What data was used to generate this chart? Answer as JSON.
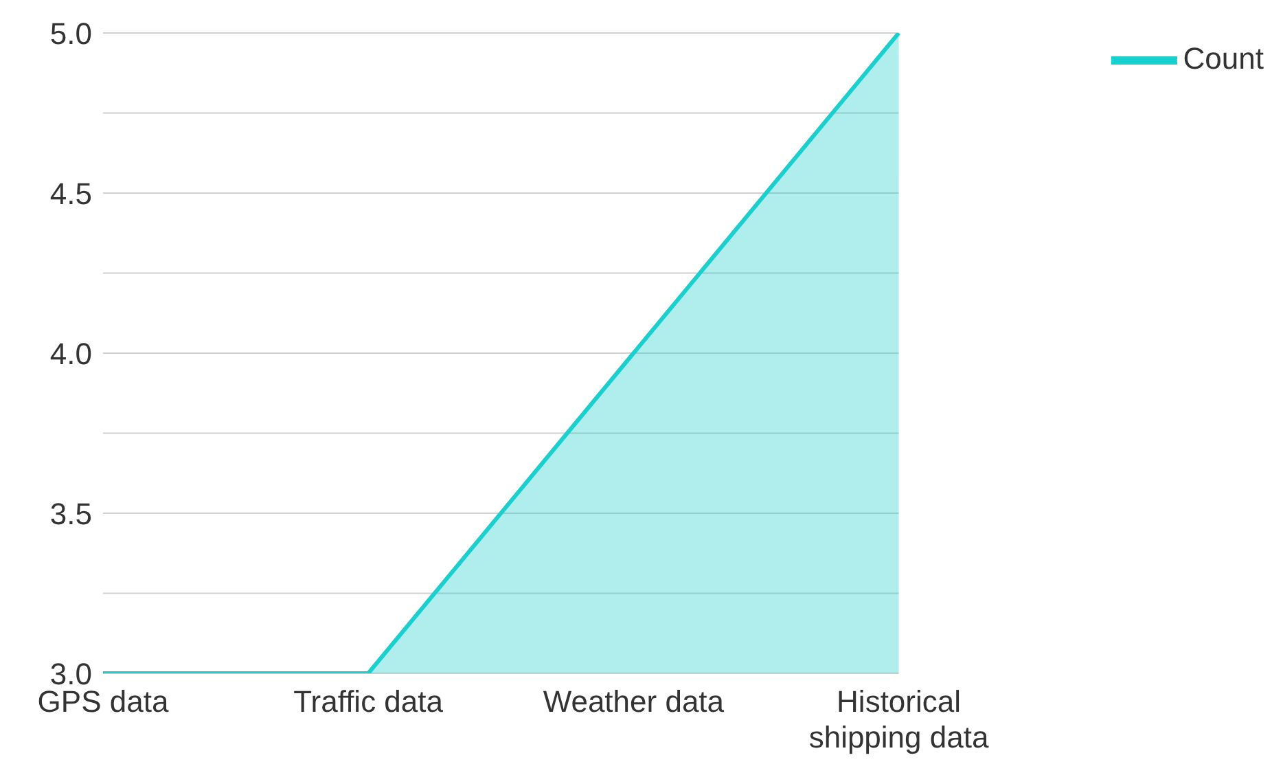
{
  "chart_data": {
    "type": "area",
    "categories": [
      "GPS data",
      "Traffic data",
      "Weather data",
      "Historical shipping data"
    ],
    "series": [
      {
        "name": "Count",
        "color": "#1ccfcf",
        "values": [
          3,
          3,
          4,
          5
        ]
      }
    ],
    "ylim": [
      3,
      5
    ],
    "yticks": [
      {
        "value": 3,
        "label": "3.0"
      },
      {
        "value": 3.25,
        "label": null
      },
      {
        "value": 3.5,
        "label": "3.5"
      },
      {
        "value": 3.75,
        "label": null
      },
      {
        "value": 4,
        "label": "4.0"
      },
      {
        "value": 4.25,
        "label": null
      },
      {
        "value": 4.5,
        "label": "4.5"
      },
      {
        "value": 4.75,
        "label": null
      },
      {
        "value": 5,
        "label": "5.0"
      }
    ],
    "grid": "y",
    "legend": "top right"
  }
}
